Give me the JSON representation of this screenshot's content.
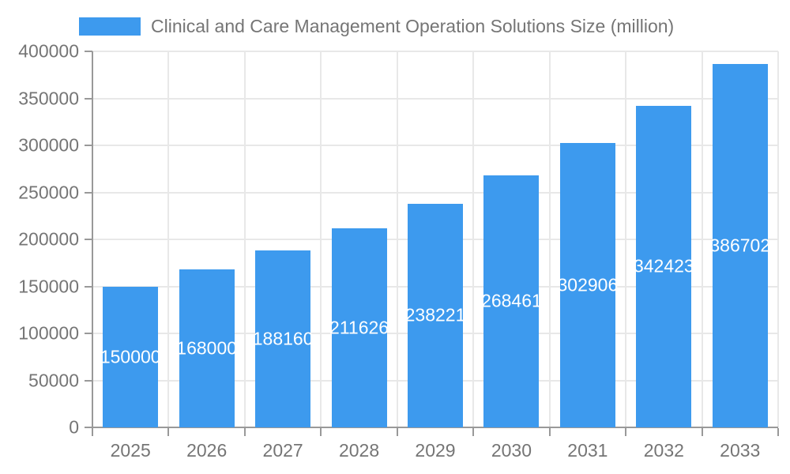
{
  "chart_data": {
    "type": "bar",
    "title": "Clinical and Care Management Operation Solutions Size (million)",
    "legend": {
      "label": "Clinical and Care Management Operation Solutions Size (million)",
      "position": "top"
    },
    "categories": [
      "2025",
      "2026",
      "2027",
      "2028",
      "2029",
      "2030",
      "2031",
      "2032",
      "2033"
    ],
    "series": [
      {
        "name": "Clinical and Care Management Operation Solutions Size (million)",
        "values": [
          150000,
          168000,
          188160,
          211626,
          238221,
          268461,
          302906,
          342423,
          386702
        ]
      }
    ],
    "xlabel": "",
    "ylabel": "",
    "ylim": [
      0,
      400000
    ],
    "yticks": [
      0,
      50000,
      100000,
      150000,
      200000,
      250000,
      300000,
      350000,
      400000
    ],
    "grid": true,
    "bar_label_position": "inside-center",
    "colors": {
      "bar": "#3d9aee",
      "bar_label": "#ffffff",
      "axis_text": "#757575",
      "grid_line": "#e8e8e8",
      "axis_line": "#999999"
    }
  }
}
